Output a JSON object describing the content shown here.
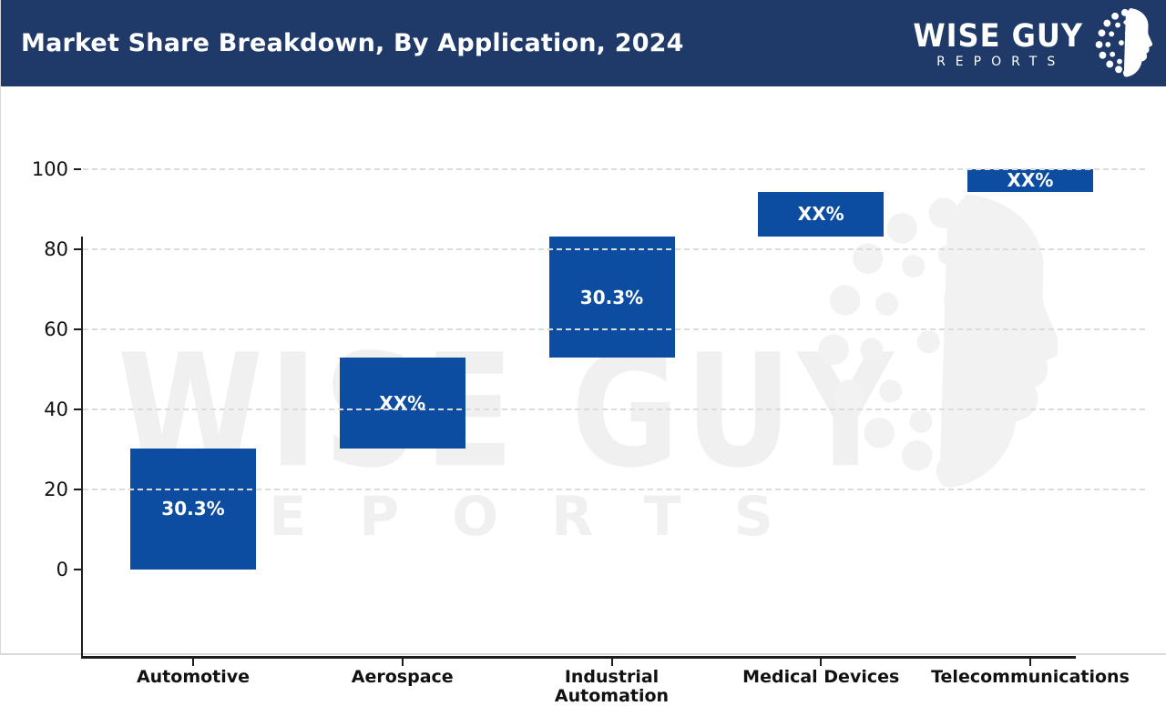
{
  "header": {
    "title": "Market Share Breakdown, By Application, 2024",
    "bg_color": "#1f3a68",
    "logo": {
      "line1": "WISE GUY",
      "line2": "REPORTS"
    }
  },
  "watermark": {
    "line1": "WISE GUY",
    "line2": "REPORTS"
  },
  "chart_data": {
    "type": "bar",
    "subtype": "waterfall",
    "title": "Market Share Breakdown, By Application, 2024",
    "categories": [
      "Automotive",
      "Aerospace",
      "Industrial Automation",
      "Medical Devices",
      "Telecommunications"
    ],
    "category_label_lines": [
      [
        "Automotive"
      ],
      [
        "Aerospace"
      ],
      [
        "Industrial",
        "Automation"
      ],
      [
        "Medical Devices"
      ],
      [
        "Telecommunications"
      ]
    ],
    "segments": [
      {
        "category": "Automotive",
        "start": 0,
        "end": 30.3,
        "label": "30.3%"
      },
      {
        "category": "Aerospace",
        "start": 30.3,
        "end": 52.9,
        "label": "XX%"
      },
      {
        "category": "Industrial Automation",
        "start": 52.9,
        "end": 83.2,
        "label": "30.3%"
      },
      {
        "category": "Medical Devices",
        "start": 83.2,
        "end": 94.4,
        "label": "XX%"
      },
      {
        "category": "Telecommunications",
        "start": 94.4,
        "end": 100,
        "label": "XX%"
      }
    ],
    "ylim": [
      0,
      100
    ],
    "yticks": [
      0,
      20,
      40,
      60,
      80,
      100
    ],
    "ytick_labels": [
      "0",
      "20",
      "40",
      "60",
      "80",
      "100"
    ],
    "grid": "dashed-horizontal",
    "legend": "none",
    "bar_color": "#0c4da2",
    "bar_label_color": "#ffffff",
    "axis_color": "#1c1c1c"
  }
}
